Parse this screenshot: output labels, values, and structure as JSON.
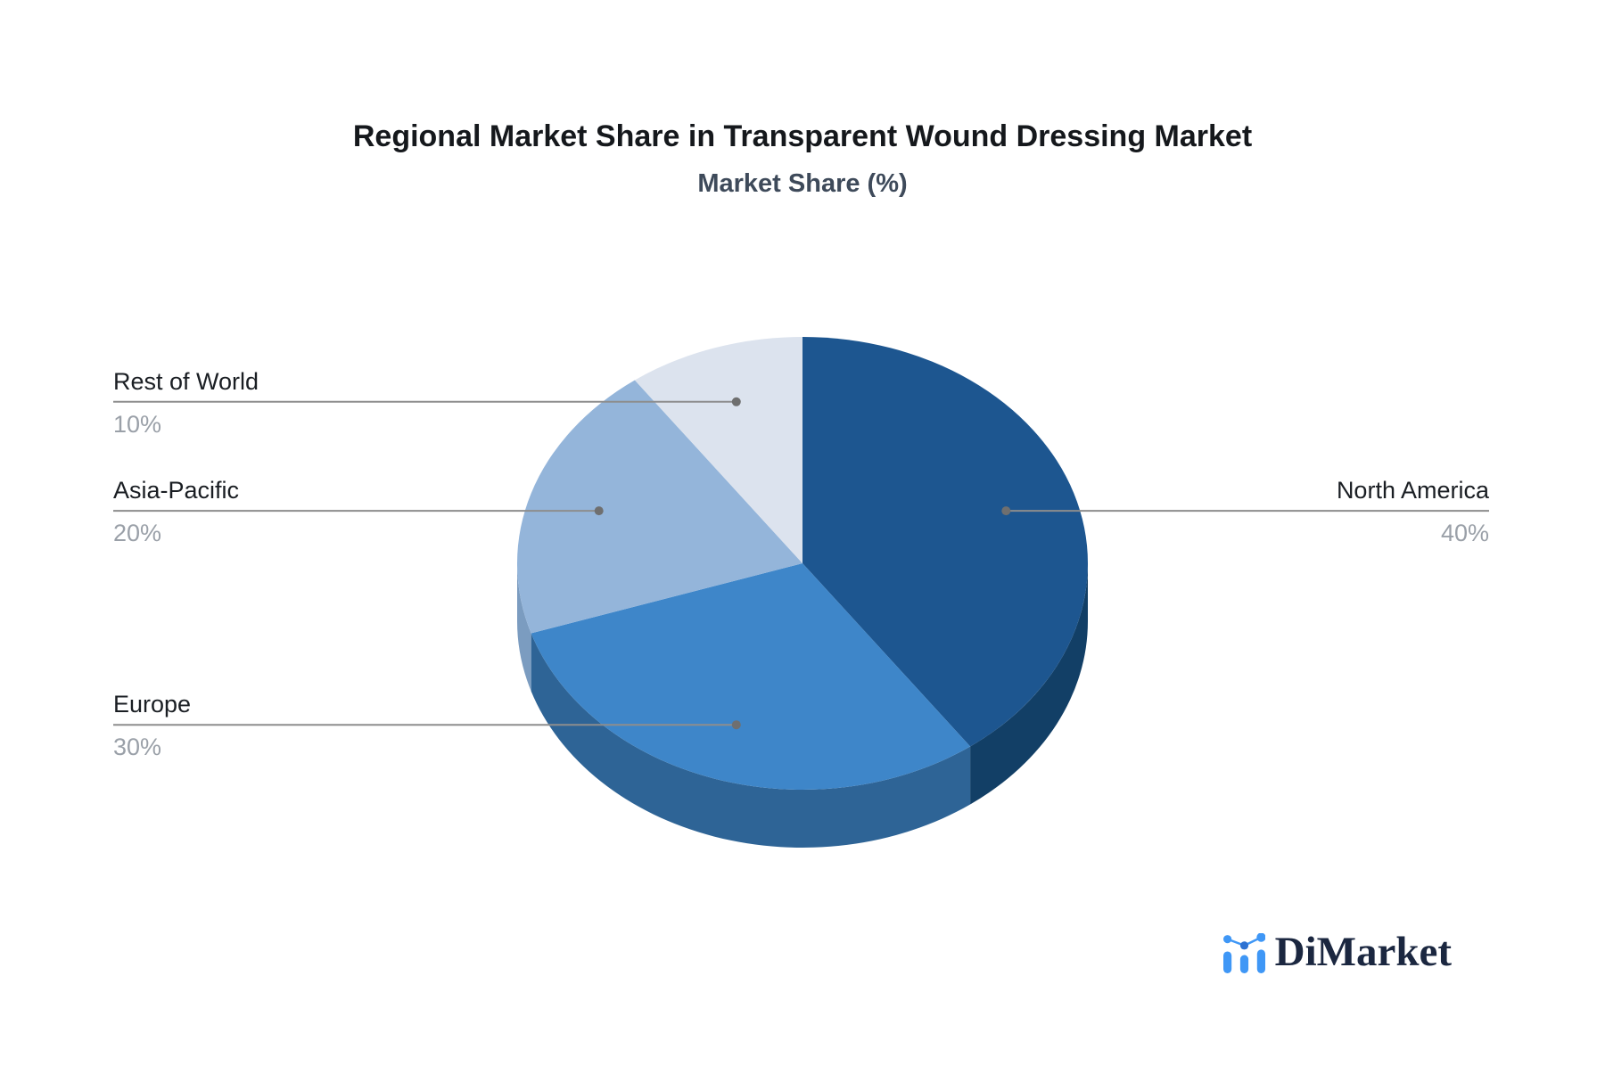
{
  "header": {
    "title": "Regional Market Share in Transparent Wound Dressing Market",
    "subtitle": "Market Share (%)"
  },
  "chart_data": {
    "type": "pie",
    "title": "Regional Market Share in Transparent Wound Dressing Market",
    "subtitle": "Market Share (%)",
    "unit": "%",
    "start_angle_deg": 0,
    "direction": "clockwise",
    "pseudo_3d": true,
    "legend_position": "none",
    "slices": [
      {
        "label": "North America",
        "value": 40,
        "display_value": "40%",
        "color": "#1d5690",
        "side_color": "#123f66",
        "label_side": "right"
      },
      {
        "label": "Europe",
        "value": 30,
        "display_value": "30%",
        "color": "#3e86c9",
        "side_color": "#2e6496",
        "label_side": "left"
      },
      {
        "label": "Asia-Pacific",
        "value": 20,
        "display_value": "20%",
        "color": "#94b5da",
        "side_color": "#7b9cc0",
        "label_side": "left"
      },
      {
        "label": "Rest of World",
        "value": 10,
        "display_value": "10%",
        "color": "#dce3ee",
        "side_color": "#b9c5d8",
        "label_side": "left"
      }
    ],
    "connector_color": "#8d8d8d",
    "connector_dot_color": "#6f6f6f",
    "label_color": "#1a1e23",
    "value_color": "#9aa0a8"
  },
  "brand": {
    "name": "DiMarket",
    "icon": "bar-chart-logo-icon",
    "icon_bar_color": "#3f97f6",
    "icon_dot_color": "#2e72d2",
    "text_color": "#1b2740"
  }
}
